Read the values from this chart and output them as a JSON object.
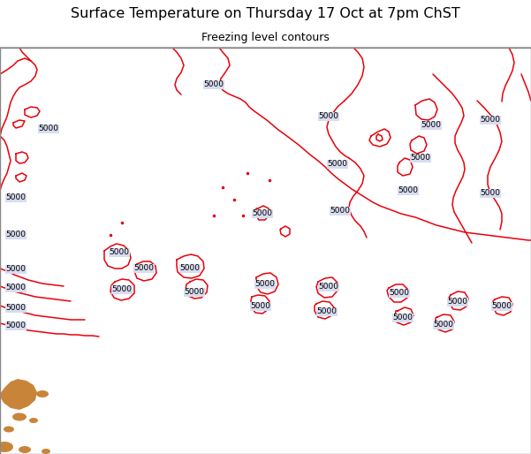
{
  "title": "Surface Temperature on Thursday 17 Oct at 7pm ChST",
  "subtitle": "Freezing level contours",
  "title_fontsize": 11.5,
  "subtitle_fontsize": 9,
  "bg_color": "#d8dcef",
  "grid_color": "#ffffff",
  "contour_color": "#e8000a",
  "land_color": "#c8853a",
  "fig_width": 6.01,
  "fig_height": 5.14,
  "dpi": 100
}
